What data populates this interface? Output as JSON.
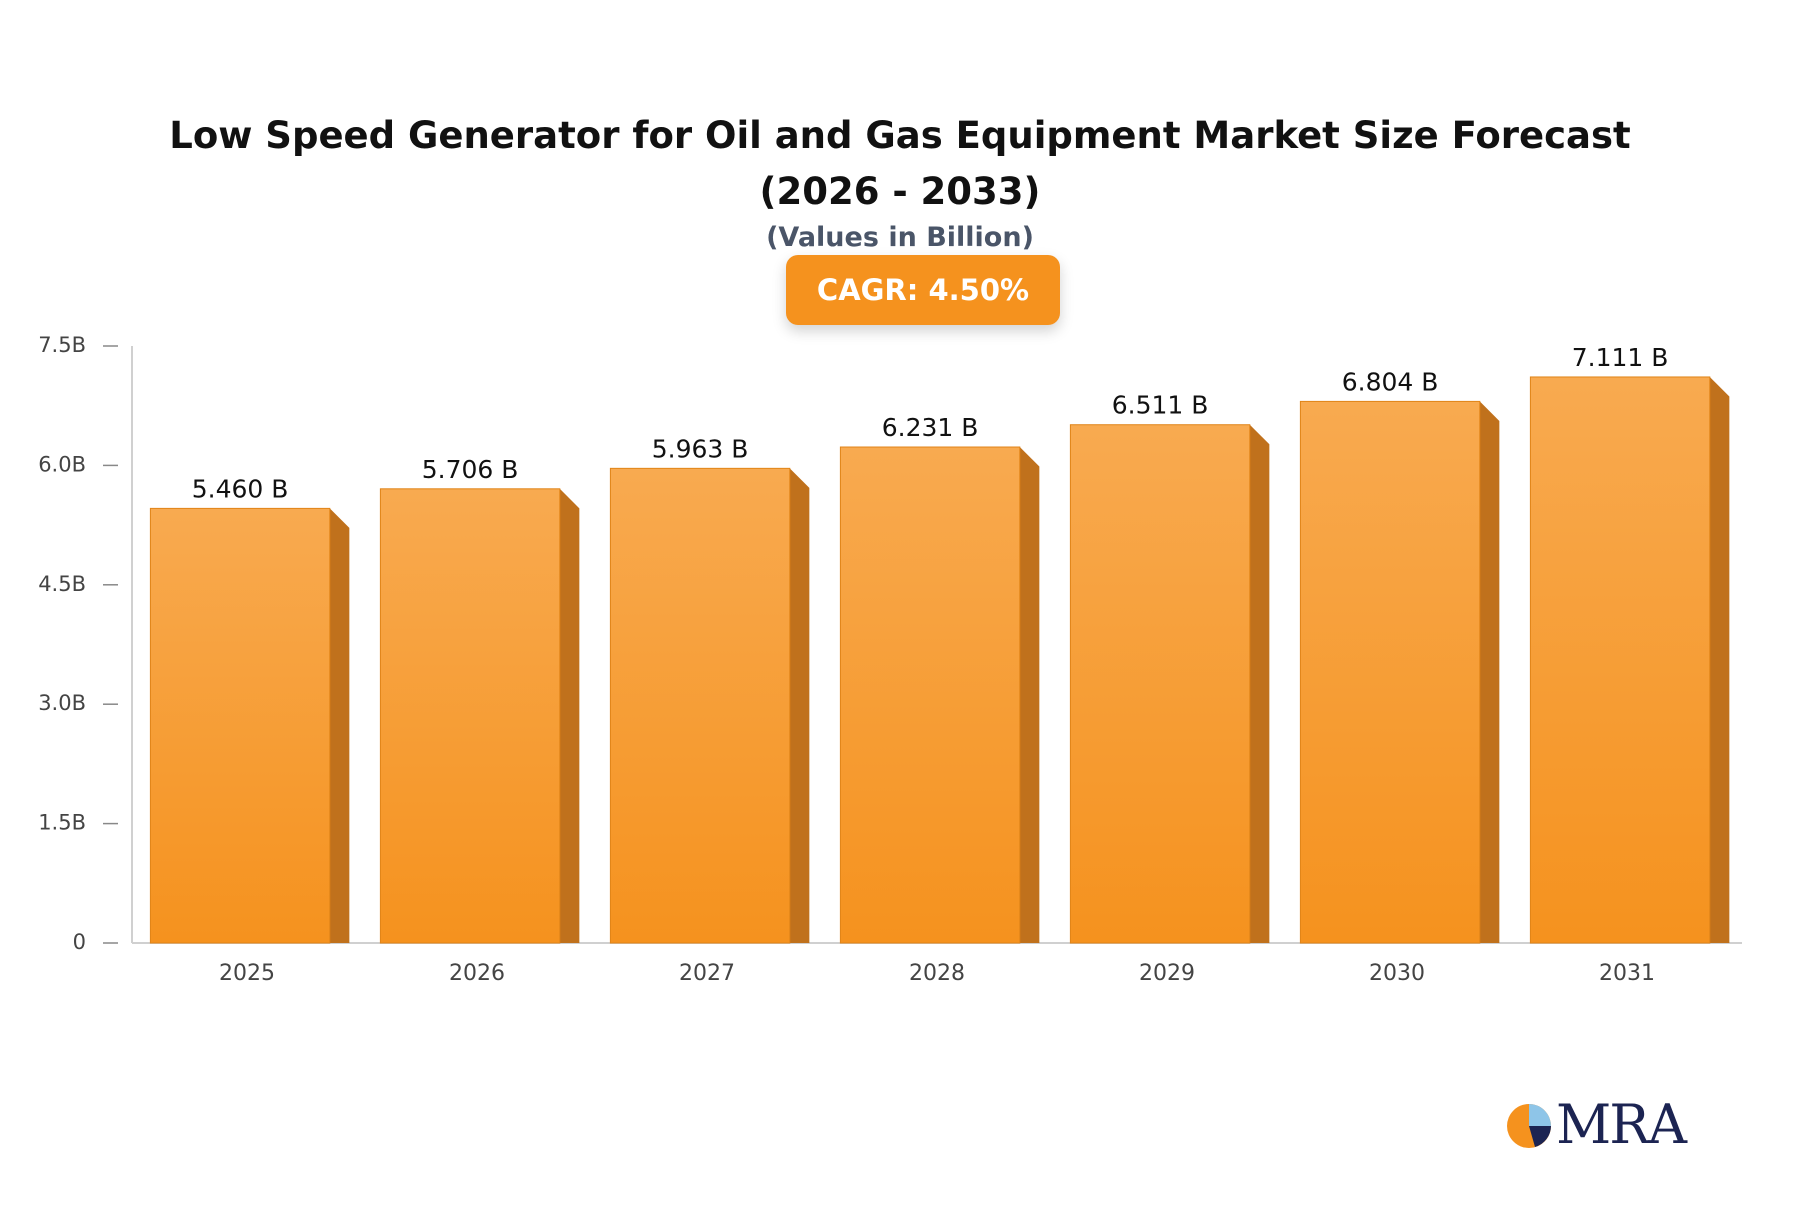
{
  "chart_data": {
    "type": "bar",
    "title": "Low Speed Generator for Oil and Gas Equipment Market Size Forecast (2026 - 2033)",
    "subtitle": "(Values in Billion)",
    "annotation": "CAGR: 4.50%",
    "categories": [
      "2025",
      "2026",
      "2027",
      "2028",
      "2029",
      "2030",
      "2031"
    ],
    "values": [
      5.46,
      5.706,
      5.963,
      6.231,
      6.511,
      6.804,
      7.111
    ],
    "value_labels": [
      "5.460 B",
      "5.706 B",
      "5.963 B",
      "6.231 B",
      "6.511 B",
      "6.804 B",
      "7.111 B"
    ],
    "color": "#f5921e",
    "ylim": [
      0,
      7.5
    ],
    "yticks": [
      0,
      {
        "value": 1.5,
        "label": "1.5B"
      },
      {
        "value": 3,
        "label": "3.0B"
      },
      {
        "value": 4.5,
        "label": "4.5B"
      },
      {
        "value": 6,
        "label": "6.0B"
      },
      {
        "value": 7.5,
        "label": "7.5B"
      }
    ],
    "grid": false
  },
  "logo": "MRA"
}
